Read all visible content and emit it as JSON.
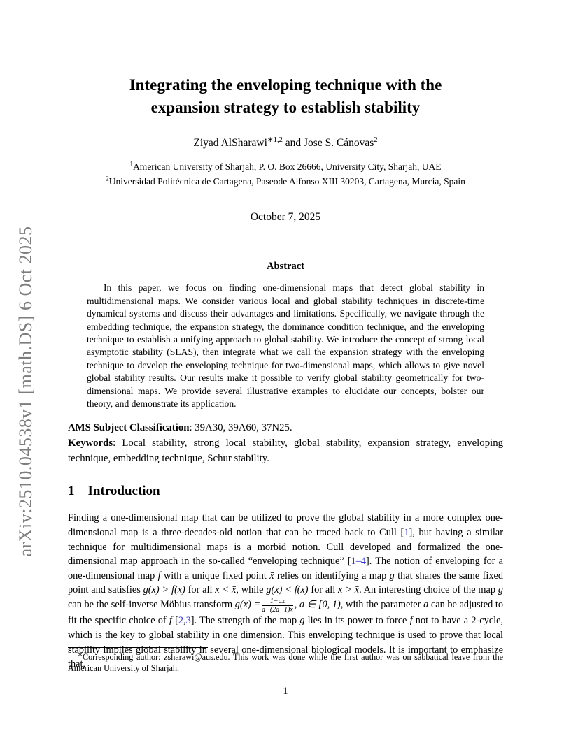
{
  "sidebar": {
    "arxiv_label": "arXiv:2510.04538v1  [math.DS]  6 Oct 2025"
  },
  "header": {
    "title_lines": [
      "Integrating the enveloping technique with the",
      "expansion strategy to establish stability"
    ],
    "authors_rich": [
      {
        "t": "Ziyad AlSharawi"
      },
      {
        "t": "∗1,2",
        "c": "sup"
      },
      {
        "t": " and  Jose S. Cánovas"
      },
      {
        "t": "2",
        "c": "sup"
      }
    ],
    "affiliation1_rich": [
      {
        "t": "1",
        "c": "sup"
      },
      {
        "t": "American University of Sharjah, P. O. Box 26666, University City, Sharjah, UAE"
      }
    ],
    "affiliation2_rich": [
      {
        "t": "2",
        "c": "sup"
      },
      {
        "t": "Universidad Politécnica de Cartagena, Paseode Alfonso XIII 30203, Cartagena, Murcia, Spain"
      }
    ],
    "date": "October 7, 2025"
  },
  "abstract": {
    "heading": "Abstract",
    "text": "In this paper, we focus on finding one-dimensional maps that detect global stability in multidimensional maps. We consider various local and global stability techniques in discrete-time dynamical systems and discuss their advantages and limitations. Specifically, we navigate through the embedding technique, the expansion strategy, the dominance condition technique, and the enveloping technique to establish a unifying approach to global stability. We introduce the concept of strong local asymptotic stability (SLAS), then integrate what we call the expansion strategy with the enveloping technique to develop the enveloping technique for two-dimensional maps, which allows to give novel global stability results. Our results make it possible to verify global stability geometrically for two-dimensional maps. We provide several illustrative examples to elucidate our concepts, bolster our theory, and demonstrate its application."
  },
  "meta": {
    "ams_rich": [
      {
        "t": "AMS Subject Classification",
        "c": "b"
      },
      {
        "t": ": 39A30, 39A60, 37N25."
      }
    ],
    "keywords_rich": [
      {
        "t": "Keywords",
        "c": "b"
      },
      {
        "t": ": Local stability, strong local stability, global stability, expansion strategy, enveloping technique, embedding technique, Schur stability."
      }
    ]
  },
  "section1": {
    "number": "1",
    "title": "Introduction",
    "paragraph_rich": [
      {
        "t": "Finding a one-dimensional map that can be utilized to prove the global stability in a more complex one-dimensional map is a three-decades-old notion that can be traced back to Cull ["
      },
      {
        "t": "1",
        "c": "cite"
      },
      {
        "t": "], but having a similar technique for multidimensional maps is a morbid notion. Cull developed and formalized the one-dimensional map approach in the so-called “enveloping technique” ["
      },
      {
        "t": "1–4",
        "c": "cite"
      },
      {
        "t": "]. The notion of enveloping for a one-dimensional map "
      },
      {
        "t": "f",
        "c": "i"
      },
      {
        "t": " with a unique fixed point "
      },
      {
        "t": "x̄",
        "c": "i"
      },
      {
        "t": " relies on identifying a map "
      },
      {
        "t": "g",
        "c": "i"
      },
      {
        "t": " that shares the same fixed point and satisfies "
      },
      {
        "t": "g(x) > f(x)",
        "c": "i"
      },
      {
        "t": " for all "
      },
      {
        "t": "x < x̄",
        "c": "i"
      },
      {
        "t": ", while "
      },
      {
        "t": "g(x) < f(x)",
        "c": "i"
      },
      {
        "t": " for all "
      },
      {
        "t": "x > x̄",
        "c": "i"
      },
      {
        "t": ". An interesting choice of the map "
      },
      {
        "t": "g",
        "c": "i"
      },
      {
        "t": " can be the self-inverse Möbius transform "
      },
      {
        "t": "g(x) =",
        "c": "i"
      },
      {
        "frac": {
          "num": "1−ax",
          "den": "a−(2a−1)x"
        }
      },
      {
        "t": ", "
      },
      {
        "t": "a ∈ [0, 1)",
        "c": "i"
      },
      {
        "t": ", with the parameter "
      },
      {
        "t": "a",
        "c": "i"
      },
      {
        "t": " can be adjusted to fit the specific choice of "
      },
      {
        "t": "f",
        "c": "i"
      },
      {
        "t": " ["
      },
      {
        "t": "2",
        "c": "cite"
      },
      {
        "t": ","
      },
      {
        "t": "3",
        "c": "cite"
      },
      {
        "t": "]. The strength of the map "
      },
      {
        "t": "g",
        "c": "i"
      },
      {
        "t": " lies in its power to force "
      },
      {
        "t": "f",
        "c": "i"
      },
      {
        "t": " not to have a 2-cycle, which is the key to global stability in one dimension. This enveloping technique is used to prove that local stability implies global stability in several one-dimensional biological models. It is important to emphasize that,"
      }
    ]
  },
  "footnote": {
    "rich": [
      {
        "t": "∗",
        "c": "sup"
      },
      {
        "t": "Corresponding author: zsharawi@aus.edu.  This work was done while the first author was on sabbatical leave from the American University of Sharjah."
      }
    ]
  },
  "footer": {
    "page_number": "1"
  }
}
